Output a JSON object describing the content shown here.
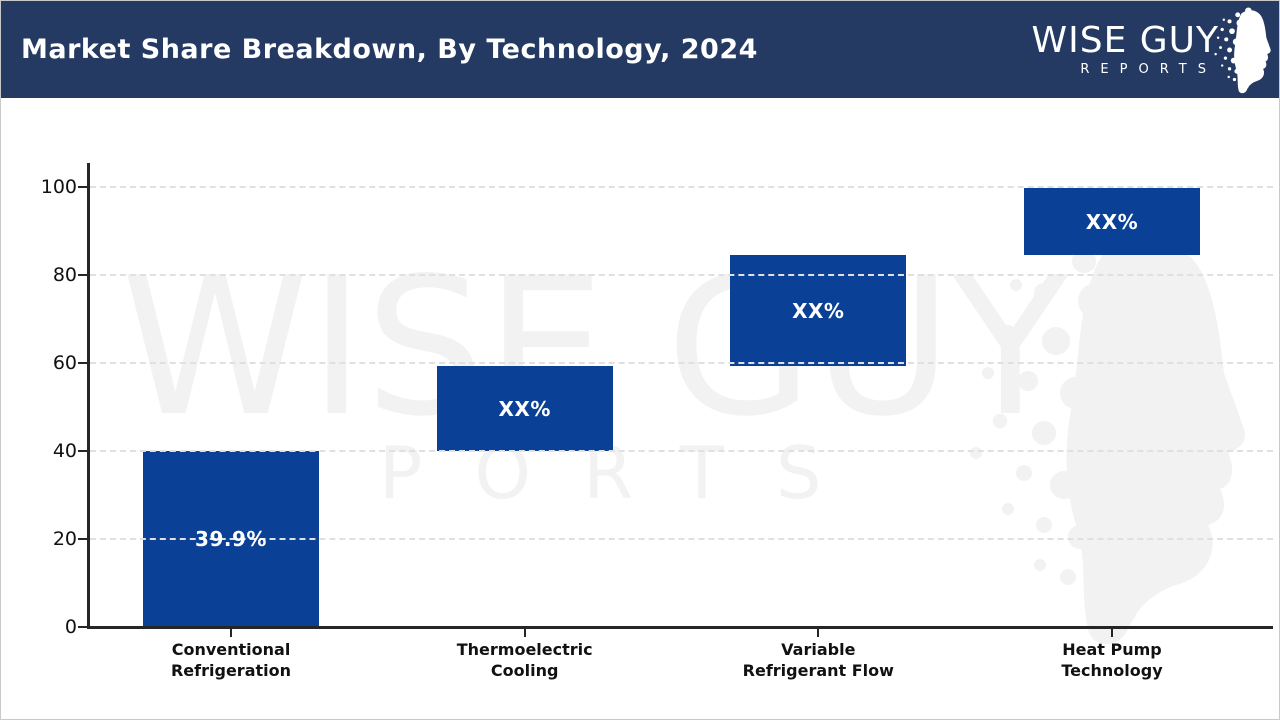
{
  "header": {
    "title": "Market Share Breakdown, By Technology, 2024",
    "logo": {
      "wordmark": "WISE GUY",
      "subtext": "REPORTS"
    }
  },
  "watermark": {
    "wordmark": "WISE GUY",
    "subtext": "PORTS"
  },
  "colors": {
    "header_bg": "#253a62",
    "bar": "#0a4196",
    "bar_label": "#ffffff",
    "grid": "#e0e0e0",
    "axis": "#262626",
    "tick_label": "#111111",
    "title_text": "#ffffff",
    "watermark": "#f2f2f2",
    "canvas_border": "#c9c9c9",
    "canvas_bg": "#ffffff"
  },
  "chart_data": {
    "type": "bar",
    "subtype": "waterfall",
    "title": "Market Share Breakdown, By Technology, 2024",
    "categories": [
      "Conventional Refrigeration",
      "Thermoelectric Cooling",
      "Variable Refrigerant Flow",
      "Heat Pump Technology"
    ],
    "category_lines": [
      [
        "Conventional",
        "Refrigeration"
      ],
      [
        "Thermoelectric",
        "Cooling"
      ],
      [
        "Variable",
        "Refrigerant Flow"
      ],
      [
        "Heat Pump",
        "Technology"
      ]
    ],
    "bars": [
      {
        "label": "39.9%",
        "start": 0,
        "end": 39.9
      },
      {
        "label": "XX%",
        "start": 39.9,
        "end": 59.3
      },
      {
        "label": "XX%",
        "start": 59.3,
        "end": 84.5
      },
      {
        "label": "XX%",
        "start": 84.5,
        "end": 99.7
      }
    ],
    "xlabel": "",
    "ylabel": "",
    "yticks": [
      0,
      20,
      40,
      60,
      80,
      100
    ],
    "ylim": [
      0,
      105
    ],
    "grid": "horizontal-dashed",
    "legend": "none"
  }
}
